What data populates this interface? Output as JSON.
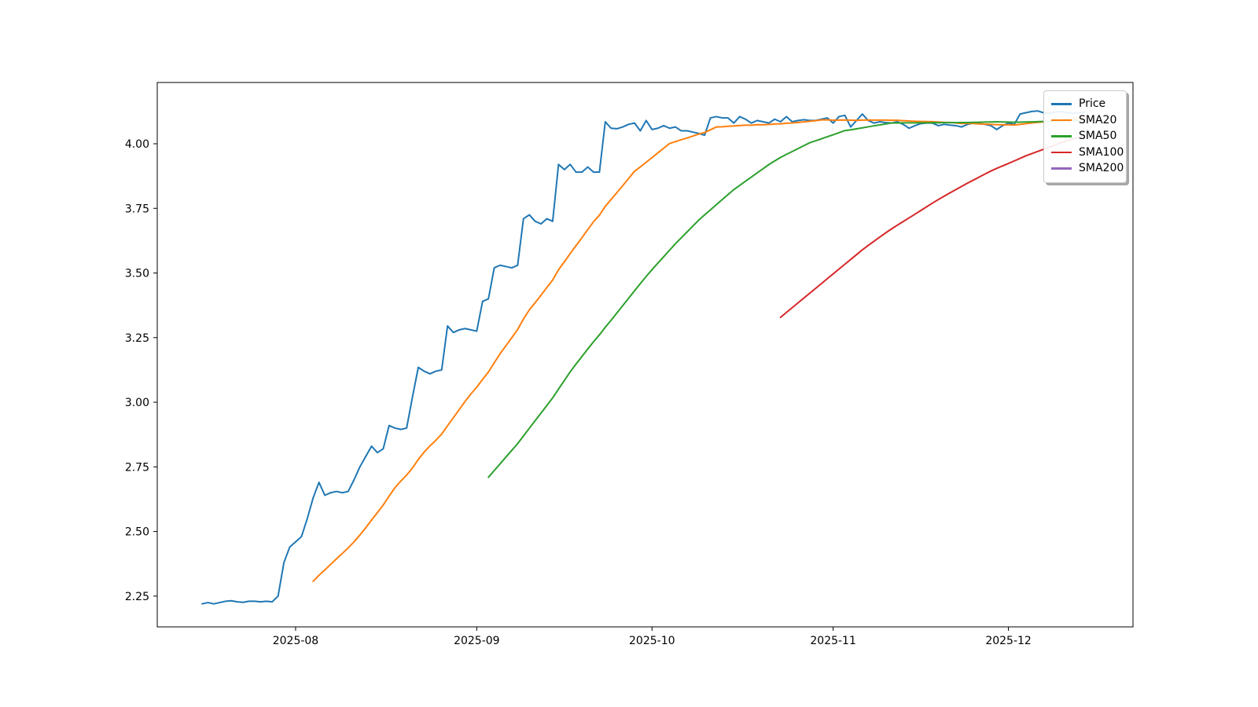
{
  "figure": {
    "background": "#ffffff",
    "title": ""
  },
  "chart_data": {
    "type": "line",
    "title": "",
    "xlabel": "",
    "ylabel": "",
    "grid": false,
    "x_start_date": "2025-07-16",
    "x_frequency": "daily",
    "x_tick_labels": [
      "2025-08",
      "2025-09",
      "2025-10",
      "2025-11",
      "2025-12"
    ],
    "x_tick_day_index": [
      16,
      47,
      77,
      108,
      138
    ],
    "y_tick_labels": [
      "2.25",
      "2.50",
      "2.75",
      "3.00",
      "3.25",
      "3.50",
      "3.75",
      "4.00"
    ],
    "y_ticks": [
      2.25,
      2.5,
      2.75,
      3.0,
      3.25,
      3.5,
      3.75,
      4.0
    ],
    "xlim_day_index": [
      -7.68,
      159.32
    ],
    "ylim": [
      2.131,
      4.237
    ],
    "legend": {
      "position": "upper right",
      "labels": [
        "Price",
        "SMA20",
        "SMA50",
        "SMA100",
        "SMA200"
      ]
    },
    "series": [
      {
        "name": "Price",
        "color": "#1f77b4",
        "values": [
          2.22,
          2.225,
          2.22,
          2.225,
          2.23,
          2.232,
          2.228,
          2.226,
          2.23,
          2.23,
          2.228,
          2.23,
          2.228,
          2.25,
          2.38,
          2.44,
          2.46,
          2.48,
          2.55,
          2.63,
          2.69,
          2.64,
          2.65,
          2.655,
          2.65,
          2.655,
          2.7,
          2.75,
          2.79,
          2.83,
          2.805,
          2.82,
          2.91,
          2.9,
          2.895,
          2.9,
          3.02,
          3.135,
          3.12,
          3.11,
          3.12,
          3.125,
          3.295,
          3.27,
          3.28,
          3.285,
          3.28,
          3.275,
          3.39,
          3.4,
          3.52,
          3.53,
          3.525,
          3.52,
          3.53,
          3.71,
          3.725,
          3.7,
          3.69,
          3.71,
          3.7,
          3.92,
          3.9,
          3.92,
          3.89,
          3.89,
          3.91,
          3.89,
          3.89,
          4.085,
          4.06,
          4.058,
          4.065,
          4.075,
          4.08,
          4.05,
          4.09,
          4.055,
          4.06,
          4.07,
          4.06,
          4.065,
          4.05,
          4.05,
          4.045,
          4.04,
          4.033,
          4.1,
          4.105,
          4.1,
          4.1,
          4.08,
          4.105,
          4.095,
          4.08,
          4.09,
          4.085,
          4.08,
          4.095,
          4.085,
          4.105,
          4.085,
          4.09,
          4.093,
          4.09,
          4.09,
          4.095,
          4.1,
          4.08,
          4.105,
          4.11,
          4.065,
          4.09,
          4.115,
          4.09,
          4.08,
          4.085,
          4.082,
          4.08,
          4.085,
          4.075,
          4.06,
          4.07,
          4.078,
          4.08,
          4.08,
          4.07,
          4.075,
          4.072,
          4.07,
          4.065,
          4.075,
          4.08,
          4.078,
          4.075,
          4.07,
          4.055,
          4.07,
          4.08,
          4.075,
          4.115,
          4.12,
          4.125,
          4.127,
          4.12,
          4.118,
          4.122,
          4.125,
          4.12,
          4.118,
          4.12,
          4.122
        ]
      },
      {
        "name": "SMA20",
        "color": "#ff7f0e",
        "derived": "rolling_mean_of_Price",
        "window": 20
      },
      {
        "name": "SMA50",
        "color": "#2ca02c",
        "derived": "rolling_mean_of_Price",
        "window": 50
      },
      {
        "name": "SMA100",
        "color": "#d62728",
        "derived": "rolling_mean_of_Price",
        "window": 100
      },
      {
        "name": "SMA200",
        "color": "#9467bd",
        "derived": "rolling_mean_of_Price",
        "window": 200
      }
    ]
  }
}
